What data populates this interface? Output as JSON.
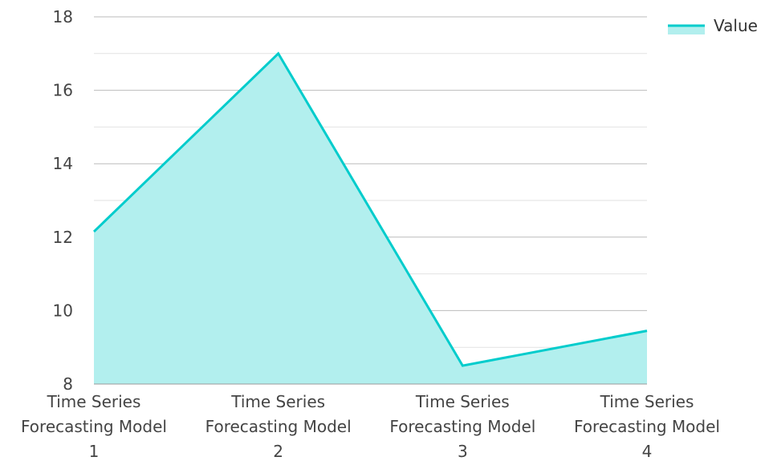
{
  "chart_data": {
    "type": "area",
    "categories": [
      [
        "Time Series",
        "Forecasting Model",
        "1"
      ],
      [
        "Time Series",
        "Forecasting Model",
        "2"
      ],
      [
        "Time Series",
        "Forecasting Model",
        "3"
      ],
      [
        "Time Series",
        "Forecasting Model",
        "4"
      ]
    ],
    "series": [
      {
        "name": "Value",
        "values": [
          12.15,
          17.0,
          8.5,
          9.45
        ]
      }
    ],
    "title": "",
    "xlabel": "",
    "ylabel": "",
    "ylim": [
      8,
      18
    ],
    "y_ticks": [
      "8",
      "10",
      "12",
      "14",
      "16",
      "18"
    ],
    "grid": true,
    "legend_position": "top-right",
    "colors": {
      "line": "#00CCCC",
      "fill": "#B2EFEE",
      "grid_major": "#BBBBBB",
      "grid_minor": "#E2E2E2",
      "axis": "#999999"
    }
  }
}
